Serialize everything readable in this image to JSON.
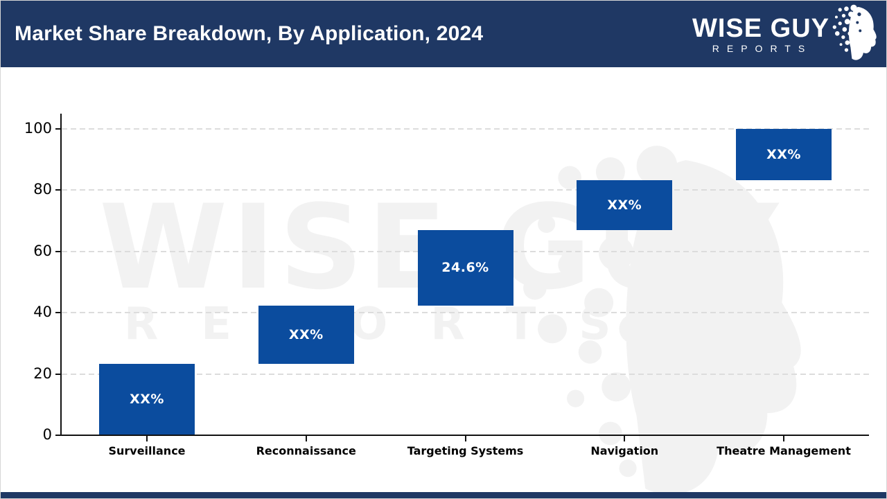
{
  "header": {
    "title": "Market Share Breakdown, By Application, 2024",
    "logo": {
      "line1": "WISE GUY",
      "line2": "REPORTS"
    }
  },
  "watermark": {
    "line1": "WISE GUY",
    "line2": "REPORTS"
  },
  "colors": {
    "header_bg": "#1f3864",
    "bar": "#0b4c9e",
    "bar_label": "#ffffff",
    "grid": "#dcdcdc",
    "axis": "#111111",
    "watermark": "#f2f2f2",
    "title_text": "#ffffff"
  },
  "chart_data": {
    "type": "bar",
    "subtype": "waterfall",
    "title": "Market Share Breakdown, By Application, 2024",
    "categories": [
      "Surveillance",
      "Reconnaissance",
      "Targeting Systems",
      "Navigation",
      "Theatre Management"
    ],
    "segments": [
      {
        "category": "Surveillance",
        "start": 0,
        "end": 23.3,
        "label": "XX%"
      },
      {
        "category": "Reconnaissance",
        "start": 23.3,
        "end": 42.3,
        "label": "XX%"
      },
      {
        "category": "Targeting Systems",
        "start": 42.3,
        "end": 66.9,
        "label": "24.6%"
      },
      {
        "category": "Navigation",
        "start": 66.9,
        "end": 83.1,
        "label": "XX%"
      },
      {
        "category": "Theatre Management",
        "start": 83.1,
        "end": 100,
        "label": "XX%"
      }
    ],
    "xlabel": "",
    "ylabel": "",
    "ylim": [
      0,
      100
    ],
    "yticks": [
      0,
      20,
      40,
      60,
      80,
      100
    ],
    "grid": true,
    "grid_style": "dashed",
    "legend": "none",
    "bar_color": "#0b4c9e",
    "label_color": "#ffffff"
  }
}
